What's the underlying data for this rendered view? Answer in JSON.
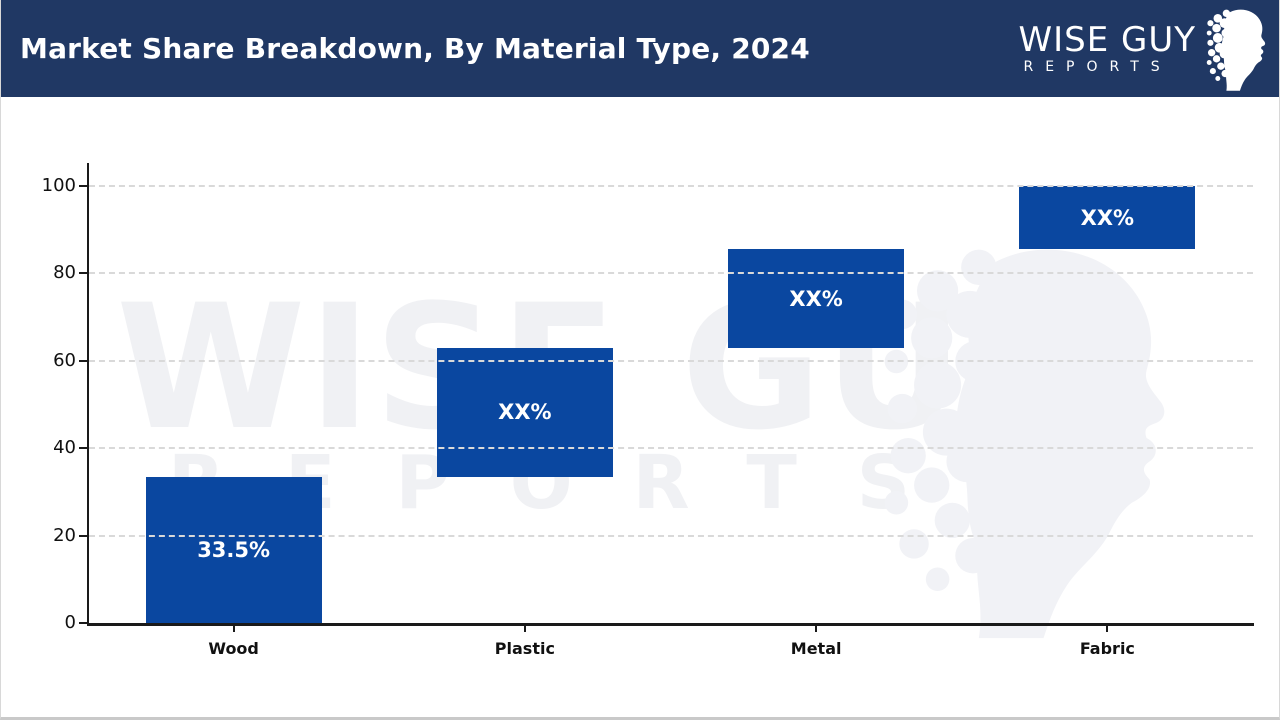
{
  "header": {
    "title": "Market Share Breakdown, By Material Type, 2024",
    "logo": {
      "line1": "WISE GUY",
      "line2": "REPORTS"
    }
  },
  "watermark": {
    "line1": "WISE GUY",
    "line2": "REPORTS"
  },
  "chart_data": {
    "type": "bar",
    "subtype": "waterfall",
    "title": "Market Share Breakdown, By Material Type, 2024",
    "categories": [
      "Wood",
      "Plastic",
      "Metal",
      "Fabric"
    ],
    "segments": [
      {
        "category": "Wood",
        "start": 0,
        "end": 33.5,
        "label": "33.5%"
      },
      {
        "category": "Plastic",
        "start": 33.5,
        "end": 63,
        "label": "XX%"
      },
      {
        "category": "Metal",
        "start": 63,
        "end": 85.5,
        "label": "XX%"
      },
      {
        "category": "Fabric",
        "start": 85.5,
        "end": 100,
        "label": "XX%"
      }
    ],
    "y_ticks": [
      0,
      20,
      40,
      60,
      80,
      100
    ],
    "ylim": [
      0,
      105
    ],
    "xlabel": "",
    "ylabel": "",
    "grid": "horizontal-dashed",
    "legend": "none",
    "bar_color": "#0a47a0",
    "bar_label_color": "#ffffff"
  },
  "colors": {
    "header_bg": "#203864",
    "title_text": "#ffffff",
    "bar": "#0a47a0",
    "gridline": "#d9d9d9",
    "axis": "#1a1a1a",
    "tick_text": "#111111",
    "watermark": "#f0f1f4"
  }
}
